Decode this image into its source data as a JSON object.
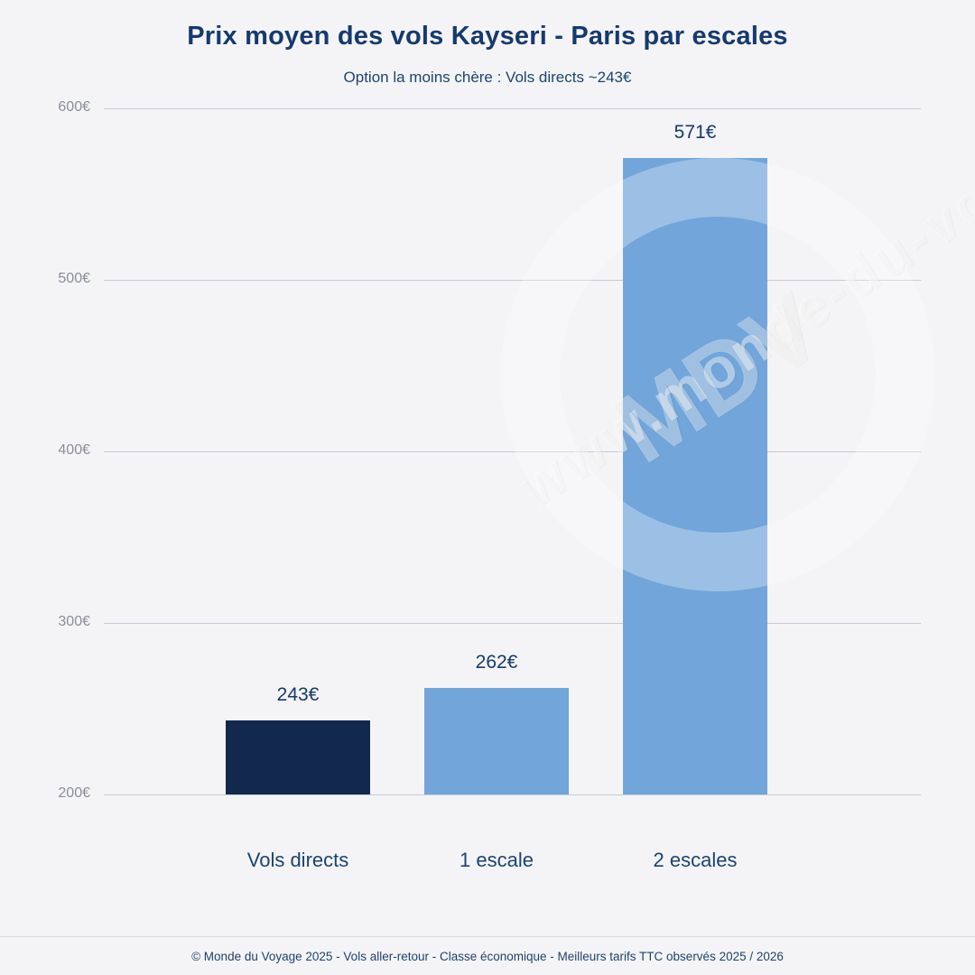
{
  "header": {
    "title": "Prix moyen des vols Kayseri - Paris par escales",
    "subtitle": "Option la moins chère : Vols directs ~243€"
  },
  "chart_data": {
    "type": "bar",
    "categories": [
      "Vols directs",
      "1 escale",
      "2 escales"
    ],
    "values": [
      243,
      262,
      571
    ],
    "bar_labels": [
      "243€",
      "262€",
      "571€"
    ],
    "title": "Prix moyen des vols Kayseri - Paris par escales",
    "subtitle": "Option la moins chère : Vols directs ~243€",
    "xlabel": "",
    "ylabel": "",
    "ylim": [
      200,
      600
    ],
    "yticks": [
      200,
      300,
      400,
      500,
      600
    ],
    "ytick_labels": [
      "200€",
      "300€",
      "400€",
      "500€",
      "600€"
    ],
    "grid": true,
    "legend_position": "none",
    "highlight_index": 0,
    "colors": {
      "highlight_bar": "#12294d",
      "default_bar": "#72a5da",
      "grid": "#c5cbd7",
      "title": "#163a6e",
      "tick_label": "#8a8e98"
    }
  },
  "watermark": {
    "ring_text": "www.monde-du-voyage.com",
    "center_text": "MDV"
  },
  "footer": {
    "text": "© Monde du Voyage 2025 - Vols aller-retour - Classe économique - Meilleurs tarifs TTC observés 2025 / 2026"
  }
}
